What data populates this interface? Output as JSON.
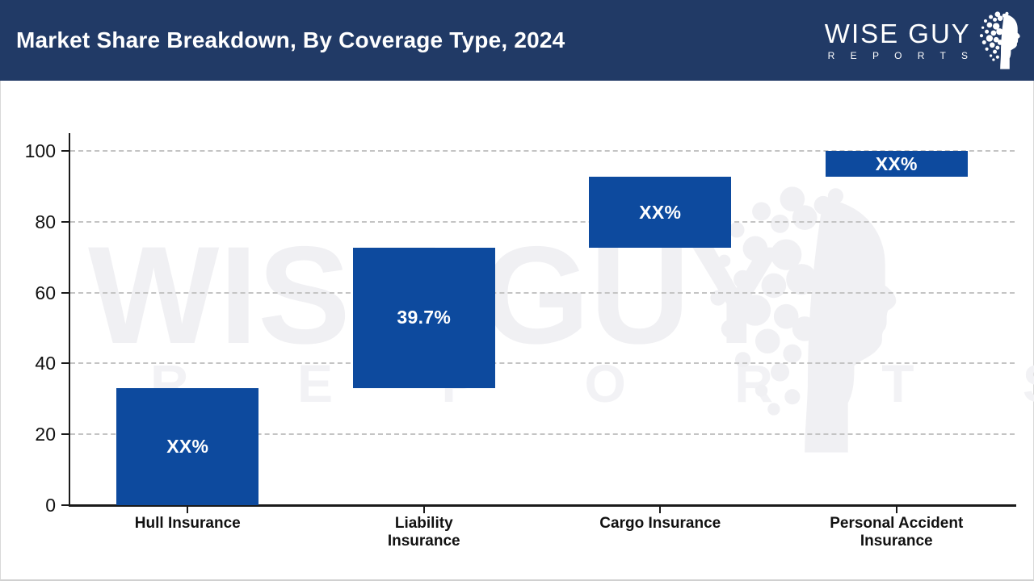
{
  "header": {
    "title": "Market Share Breakdown, By Coverage Type, 2024",
    "bg_color": "#213a66",
    "logo": {
      "brand_line1": "WISE GUY",
      "brand_line2": "R E P O R T S"
    }
  },
  "watermark": {
    "line1": "WISE GUY",
    "line2": "R E P O R T S"
  },
  "colors": {
    "header_bg": "#213a66",
    "bar_blue": "#0d4a9e",
    "grid_gray": "#c4c4c4",
    "watermark_gray": "#f0f0f3",
    "axis_black": "#1a1a1a"
  },
  "chart_data": {
    "type": "bar",
    "subtype": "waterfall-stacked",
    "title": "Market Share Breakdown, By Coverage Type, 2024",
    "categories": [
      "Hull Insurance",
      "Liability Insurance",
      "Cargo Insurance",
      "Personal Accident Insurance"
    ],
    "category_display": [
      [
        "Hull Insurance"
      ],
      [
        "Liability",
        "Insurance"
      ],
      [
        "Cargo Insurance"
      ],
      [
        "Personal Accident",
        "Insurance"
      ]
    ],
    "segments": [
      {
        "category": "Hull Insurance",
        "base": 0,
        "value": 33.0,
        "top": 33.0,
        "label": "XX%"
      },
      {
        "category": "Liability Insurance",
        "base": 33.0,
        "value": 39.7,
        "top": 72.7,
        "label": "39.7%"
      },
      {
        "category": "Cargo Insurance",
        "base": 72.7,
        "value": 19.9,
        "top": 92.6,
        "label": "XX%"
      },
      {
        "category": "Personal Accident Insurance",
        "base": 92.6,
        "value": 7.4,
        "top": 100.0,
        "label": "XX%"
      }
    ],
    "xlabel": "",
    "ylabel": "",
    "yticks": [
      0,
      20,
      40,
      60,
      80,
      100
    ],
    "ylim": [
      0,
      105
    ],
    "grid": {
      "horizontal": true,
      "style": "dashed"
    },
    "legend": null,
    "bar_color": "#0d4a9e",
    "bar_label_color": "#ffffff"
  }
}
